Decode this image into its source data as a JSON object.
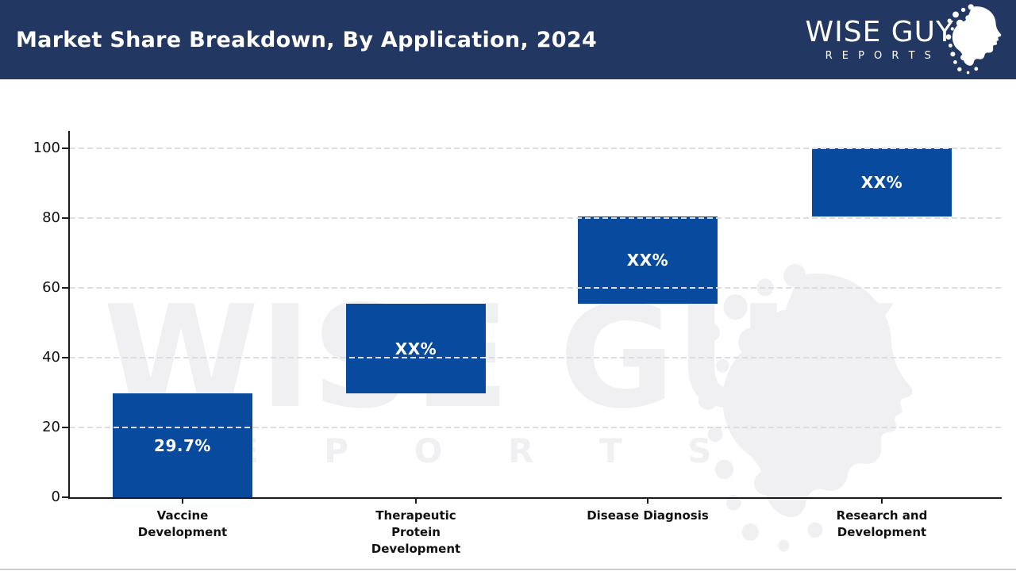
{
  "header": {
    "title": "Market Share Breakdown, By Application, 2024",
    "bg_color": "#223863",
    "logo": {
      "line1": "WISE GUY",
      "line2": "R E P O R T S"
    }
  },
  "watermark": {
    "line1": "WISE GUY",
    "line2": "R E P O R T S"
  },
  "chart_data": {
    "type": "bar",
    "subtype": "waterfall",
    "title": "Market Share Breakdown, By Application, 2024",
    "xlabel": "",
    "ylabel": "",
    "ylim": [
      0,
      100
    ],
    "yticks": [
      0,
      20,
      40,
      60,
      80,
      100
    ],
    "grid": "horizontal dashed gridlines drawn over bars",
    "legend": "none",
    "bar_color": "#084a9e",
    "categories": [
      "Vaccine Development",
      "Therapeutic Protein Development",
      "Disease Diagnosis",
      "Research and Development"
    ],
    "category_lines": [
      [
        "Vaccine",
        "Development"
      ],
      [
        "Therapeutic",
        "Protein",
        "Development"
      ],
      [
        "Disease Diagnosis"
      ],
      [
        "Research and",
        "Development"
      ]
    ],
    "bars": [
      {
        "category": "Vaccine Development",
        "label": "29.7%",
        "start": 0,
        "end": 29.7
      },
      {
        "category": "Therapeutic Protein Development",
        "label": "XX%",
        "start": 29.7,
        "end": 55.4
      },
      {
        "category": "Disease Diagnosis",
        "label": "XX%",
        "start": 55.4,
        "end": 80.4
      },
      {
        "category": "Research and Development",
        "label": "XX%",
        "start": 80.4,
        "end": 100
      }
    ]
  }
}
